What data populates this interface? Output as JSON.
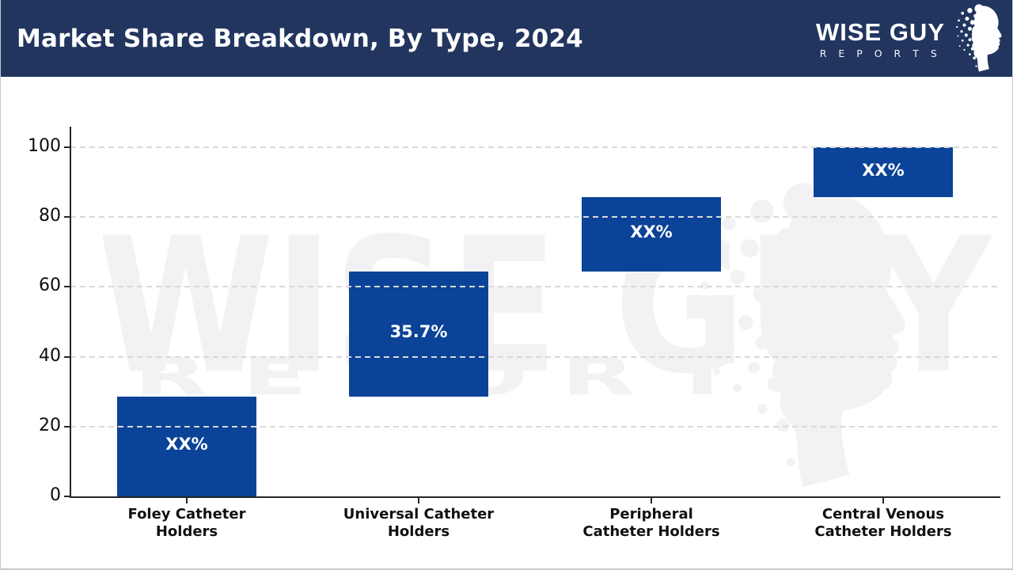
{
  "header": {
    "title": "Market Share Breakdown, By Type, 2024",
    "bg_color": "#21355F",
    "logo": {
      "name": "WISE GUY",
      "tagline": "R E P O R T S"
    }
  },
  "watermark": {
    "line1": "WISE GUY",
    "line2": "R E P O R T S",
    "color": "#f2f2f5"
  },
  "chart_data": {
    "type": "bar",
    "subtype": "floating-segment-waterfall",
    "title": "Market Share Breakdown, By Type, 2024",
    "xlabel": "",
    "ylabel": "",
    "categories": [
      "Foley Catheter Holders",
      "Universal Catheter Holders",
      "Peripheral Catheter Holders",
      "Central Venous Catheter Holders"
    ],
    "bars": [
      {
        "category": "Foley Catheter Holders",
        "lines": [
          "Foley Catheter",
          "Holders"
        ],
        "start": 0,
        "end": 28.6,
        "label": "XX%"
      },
      {
        "category": "Universal Catheter Holders",
        "lines": [
          "Universal Catheter",
          "Holders"
        ],
        "start": 28.6,
        "end": 64.3,
        "label": "35.7%"
      },
      {
        "category": "Peripheral Catheter Holders",
        "lines": [
          "Peripheral",
          "Catheter Holders"
        ],
        "start": 64.3,
        "end": 85.7,
        "label": "XX%"
      },
      {
        "category": "Central Venous Catheter Holders",
        "lines": [
          "Central Venous",
          "Catheter Holders"
        ],
        "start": 85.7,
        "end": 100,
        "label": "XX%"
      }
    ],
    "yticks": [
      0,
      20,
      40,
      60,
      80,
      100
    ],
    "ylim": [
      0,
      106
    ],
    "bar_color": "#0A4397",
    "axis_color": "#262626",
    "gridline_color": "#d9d9d9",
    "grid": "horizontal-dashed",
    "legend": false
  }
}
